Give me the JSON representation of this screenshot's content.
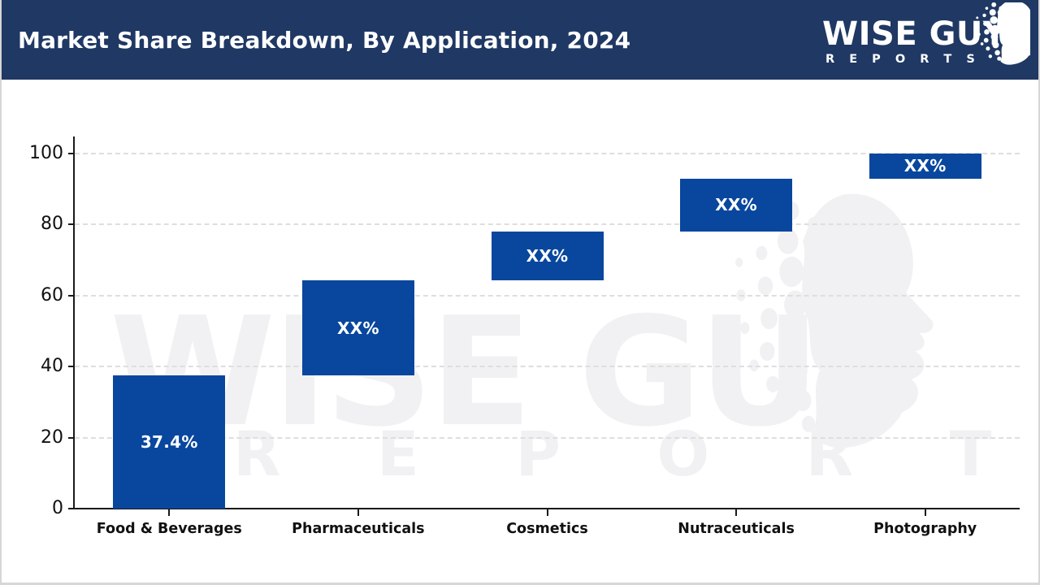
{
  "header": {
    "title": "Market Share Breakdown, By Application, 2024",
    "logo": {
      "line1": "WISE GUY",
      "line2": "R E P O R T S"
    }
  },
  "watermark": {
    "line1": "WISE GUY",
    "line2": "R E P O R T S"
  },
  "colors": {
    "header_bg": "#1f3864",
    "bar": "#08479d",
    "bar_label": "#ffffff",
    "grid": "#dedede",
    "axis": "#1a1a1a",
    "watermark": "#f1f1f3",
    "page_border": "#d6d6d6"
  },
  "chart_data": {
    "type": "bar",
    "subtype": "waterfall",
    "title": "Market Share Breakdown, By Application, 2024",
    "categories": [
      "Food & Beverages",
      "Pharmaceuticals",
      "Cosmetics",
      "Nutraceuticals",
      "Photography"
    ],
    "segments": [
      {
        "category": "Food & Beverages",
        "start": 0,
        "end": 37.4,
        "label": "37.4%"
      },
      {
        "category": "Pharmaceuticals",
        "start": 37.4,
        "end": 64.2,
        "label": "XX%"
      },
      {
        "category": "Cosmetics",
        "start": 64.2,
        "end": 78,
        "label": "XX%"
      },
      {
        "category": "Nutraceuticals",
        "start": 78,
        "end": 92.8,
        "label": "XX%"
      },
      {
        "category": "Photography",
        "start": 92.8,
        "end": 100,
        "label": "XX%"
      }
    ],
    "xlabel": "",
    "ylabel": "",
    "yticks": [
      0,
      20,
      40,
      60,
      80,
      100
    ],
    "ylim": [
      0,
      105
    ],
    "grid": "horizontal-dashed",
    "legend": "none",
    "bar_color": "#08479d",
    "value_label_color": "#ffffff"
  }
}
